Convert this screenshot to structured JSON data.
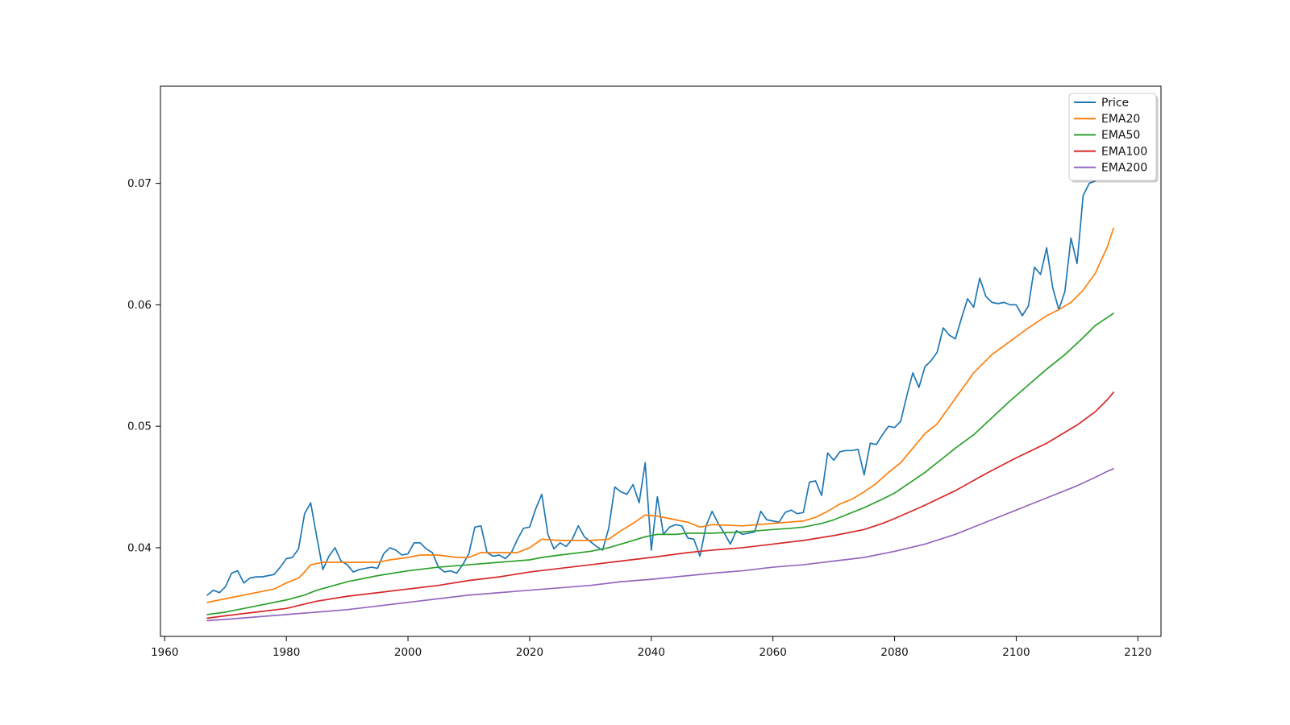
{
  "page": {
    "background": "#ffffff"
  },
  "chart_data": {
    "type": "line",
    "title": "",
    "xlabel": "",
    "ylabel": "",
    "grid": false,
    "plot_background": "#ffffff",
    "spine_color": "#000000",
    "tick_color": "#000000",
    "xlim": [
      1959.3,
      2123.8
    ],
    "ylim": [
      0.0327,
      0.078
    ],
    "x_ticks": [
      {
        "value": 1960,
        "label": "1960"
      },
      {
        "value": 1980,
        "label": "1980"
      },
      {
        "value": 2000,
        "label": "2000"
      },
      {
        "value": 2020,
        "label": "2020"
      },
      {
        "value": 2040,
        "label": "2040"
      },
      {
        "value": 2060,
        "label": "2060"
      },
      {
        "value": 2080,
        "label": "2080"
      },
      {
        "value": 2100,
        "label": "2100"
      },
      {
        "value": 2120,
        "label": "2120"
      }
    ],
    "y_ticks": [
      {
        "value": 0.04,
        "label": "0.04"
      },
      {
        "value": 0.05,
        "label": "0.05"
      },
      {
        "value": 0.06,
        "label": "0.06"
      },
      {
        "value": 0.07,
        "label": "0.07"
      }
    ],
    "legend": {
      "position": "upper right",
      "border_color": "#cccccc",
      "fill": "#ffffff",
      "entries": [
        "Price",
        "EMA20",
        "EMA50",
        "EMA100",
        "EMA200"
      ]
    },
    "series": [
      {
        "name": "Price",
        "color": "#1f77b4",
        "line_width": 1.7,
        "start_year": 1967,
        "step": 1,
        "values": [
          0.0361,
          0.0365,
          0.0363,
          0.0368,
          0.0379,
          0.0381,
          0.0371,
          0.0375,
          0.0376,
          0.0376,
          0.0377,
          0.0378,
          0.0384,
          0.0391,
          0.0392,
          0.0399,
          0.0428,
          0.0437,
          0.0409,
          0.0382,
          0.0393,
          0.04,
          0.0389,
          0.0386,
          0.038,
          0.0382,
          0.0383,
          0.0384,
          0.0383,
          0.0395,
          0.04,
          0.0398,
          0.0394,
          0.0395,
          0.0404,
          0.0404,
          0.0399,
          0.0396,
          0.0384,
          0.038,
          0.0381,
          0.0379,
          0.0386,
          0.0395,
          0.0417,
          0.0418,
          0.0396,
          0.0393,
          0.0394,
          0.0391,
          0.0396,
          0.0407,
          0.0416,
          0.0417,
          0.0432,
          0.0444,
          0.0411,
          0.0399,
          0.0404,
          0.0401,
          0.0407,
          0.0418,
          0.0409,
          0.0405,
          0.0401,
          0.0398,
          0.0416,
          0.045,
          0.0446,
          0.0444,
          0.0452,
          0.0437,
          0.047,
          0.0398,
          0.0442,
          0.0411,
          0.0417,
          0.0419,
          0.0418,
          0.0408,
          0.0407,
          0.0393,
          0.0418,
          0.043,
          0.042,
          0.0412,
          0.0403,
          0.0414,
          0.0411,
          0.0412,
          0.0413,
          0.043,
          0.0423,
          0.0422,
          0.0421,
          0.0429,
          0.0431,
          0.0428,
          0.0429,
          0.0454,
          0.0455,
          0.0443,
          0.0478,
          0.0472,
          0.0479,
          0.048,
          0.048,
          0.0481,
          0.046,
          0.0486,
          0.0485,
          0.0493,
          0.05,
          0.0499,
          0.0504,
          0.0525,
          0.0544,
          0.0532,
          0.0549,
          0.0554,
          0.0561,
          0.0581,
          0.0575,
          0.0572,
          0.0589,
          0.0605,
          0.0598,
          0.0622,
          0.0607,
          0.0602,
          0.0601,
          0.0602,
          0.06,
          0.06,
          0.0591,
          0.0599,
          0.0631,
          0.0625,
          0.0647,
          0.0614,
          0.0596,
          0.0611,
          0.0655,
          0.0634,
          0.069,
          0.07,
          0.0702,
          0.0722,
          0.0742,
          0.0758
        ]
      },
      {
        "name": "EMA20",
        "color": "#ff7f0e",
        "line_width": 1.7,
        "points": [
          [
            1967,
            0.0355
          ],
          [
            1970,
            0.0358
          ],
          [
            1975,
            0.0363
          ],
          [
            1978,
            0.0366
          ],
          [
            1980,
            0.0371
          ],
          [
            1982,
            0.0375
          ],
          [
            1983,
            0.038
          ],
          [
            1984,
            0.0386
          ],
          [
            1986,
            0.0388
          ],
          [
            1990,
            0.0388
          ],
          [
            1995,
            0.0388
          ],
          [
            1997,
            0.039
          ],
          [
            2000,
            0.0392
          ],
          [
            2002,
            0.0394
          ],
          [
            2005,
            0.0394
          ],
          [
            2008,
            0.0392
          ],
          [
            2010,
            0.0392
          ],
          [
            2012,
            0.0396
          ],
          [
            2015,
            0.0396
          ],
          [
            2018,
            0.0396
          ],
          [
            2020,
            0.04
          ],
          [
            2022,
            0.0407
          ],
          [
            2025,
            0.0406
          ],
          [
            2030,
            0.0406
          ],
          [
            2033,
            0.0407
          ],
          [
            2035,
            0.0414
          ],
          [
            2037,
            0.042
          ],
          [
            2039,
            0.0427
          ],
          [
            2041,
            0.0426
          ],
          [
            2043,
            0.0424
          ],
          [
            2046,
            0.0421
          ],
          [
            2048,
            0.0417
          ],
          [
            2050,
            0.0419
          ],
          [
            2055,
            0.0418
          ],
          [
            2060,
            0.042
          ],
          [
            2065,
            0.0422
          ],
          [
            2067,
            0.0425
          ],
          [
            2069,
            0.043
          ],
          [
            2071,
            0.0436
          ],
          [
            2073,
            0.044
          ],
          [
            2075,
            0.0446
          ],
          [
            2077,
            0.0453
          ],
          [
            2079,
            0.0462
          ],
          [
            2081,
            0.047
          ],
          [
            2083,
            0.0482
          ],
          [
            2085,
            0.0494
          ],
          [
            2087,
            0.0502
          ],
          [
            2090,
            0.0523
          ],
          [
            2093,
            0.0544
          ],
          [
            2096,
            0.0559
          ],
          [
            2099,
            0.057
          ],
          [
            2102,
            0.0581
          ],
          [
            2105,
            0.0591
          ],
          [
            2107,
            0.0596
          ],
          [
            2109,
            0.0602
          ],
          [
            2111,
            0.0612
          ],
          [
            2113,
            0.0626
          ],
          [
            2115,
            0.0648
          ],
          [
            2116,
            0.0663
          ]
        ]
      },
      {
        "name": "EMA50",
        "color": "#2ca02c",
        "line_width": 1.7,
        "points": [
          [
            1967,
            0.0345
          ],
          [
            1970,
            0.0347
          ],
          [
            1975,
            0.0352
          ],
          [
            1980,
            0.0357
          ],
          [
            1983,
            0.0361
          ],
          [
            1985,
            0.0365
          ],
          [
            1990,
            0.0372
          ],
          [
            1995,
            0.0377
          ],
          [
            2000,
            0.0381
          ],
          [
            2005,
            0.0384
          ],
          [
            2010,
            0.0386
          ],
          [
            2015,
            0.0388
          ],
          [
            2020,
            0.039
          ],
          [
            2022,
            0.0392
          ],
          [
            2025,
            0.0394
          ],
          [
            2030,
            0.0397
          ],
          [
            2033,
            0.04
          ],
          [
            2035,
            0.0403
          ],
          [
            2037,
            0.0406
          ],
          [
            2039,
            0.0409
          ],
          [
            2041,
            0.0411
          ],
          [
            2044,
            0.0411
          ],
          [
            2046,
            0.0412
          ],
          [
            2050,
            0.0412
          ],
          [
            2055,
            0.0413
          ],
          [
            2060,
            0.0415
          ],
          [
            2063,
            0.0416
          ],
          [
            2065,
            0.0417
          ],
          [
            2068,
            0.042
          ],
          [
            2070,
            0.0423
          ],
          [
            2072,
            0.0427
          ],
          [
            2075,
            0.0433
          ],
          [
            2078,
            0.044
          ],
          [
            2080,
            0.0445
          ],
          [
            2085,
            0.0462
          ],
          [
            2088,
            0.0474
          ],
          [
            2090,
            0.0482
          ],
          [
            2093,
            0.0493
          ],
          [
            2096,
            0.0507
          ],
          [
            2099,
            0.0521
          ],
          [
            2102,
            0.0534
          ],
          [
            2105,
            0.0547
          ],
          [
            2108,
            0.0559
          ],
          [
            2111,
            0.0573
          ],
          [
            2113,
            0.0583
          ],
          [
            2116,
            0.0593
          ]
        ]
      },
      {
        "name": "EMA100",
        "color": "#d62728",
        "line_width": 1.7,
        "points": [
          [
            1967,
            0.0342
          ],
          [
            1970,
            0.0344
          ],
          [
            1975,
            0.0347
          ],
          [
            1980,
            0.035
          ],
          [
            1985,
            0.0356
          ],
          [
            1990,
            0.036
          ],
          [
            1995,
            0.0363
          ],
          [
            2000,
            0.0366
          ],
          [
            2005,
            0.0369
          ],
          [
            2010,
            0.0373
          ],
          [
            2015,
            0.0376
          ],
          [
            2020,
            0.038
          ],
          [
            2025,
            0.0383
          ],
          [
            2030,
            0.0386
          ],
          [
            2035,
            0.0389
          ],
          [
            2040,
            0.0392
          ],
          [
            2043,
            0.0394
          ],
          [
            2046,
            0.0396
          ],
          [
            2050,
            0.0398
          ],
          [
            2055,
            0.04
          ],
          [
            2060,
            0.0403
          ],
          [
            2065,
            0.0406
          ],
          [
            2070,
            0.041
          ],
          [
            2075,
            0.0415
          ],
          [
            2078,
            0.042
          ],
          [
            2080,
            0.0424
          ],
          [
            2085,
            0.0435
          ],
          [
            2090,
            0.0447
          ],
          [
            2095,
            0.0461
          ],
          [
            2100,
            0.0474
          ],
          [
            2105,
            0.0486
          ],
          [
            2110,
            0.0501
          ],
          [
            2113,
            0.0512
          ],
          [
            2115,
            0.0522
          ],
          [
            2116,
            0.0528
          ]
        ]
      },
      {
        "name": "EMA200",
        "color": "#9467bd",
        "line_width": 1.7,
        "points": [
          [
            1967,
            0.034
          ],
          [
            1970,
            0.0341
          ],
          [
            1975,
            0.0343
          ],
          [
            1980,
            0.0345
          ],
          [
            1985,
            0.0347
          ],
          [
            1990,
            0.0349
          ],
          [
            1995,
            0.0352
          ],
          [
            2000,
            0.0355
          ],
          [
            2005,
            0.0358
          ],
          [
            2010,
            0.0361
          ],
          [
            2015,
            0.0363
          ],
          [
            2020,
            0.0365
          ],
          [
            2025,
            0.0367
          ],
          [
            2030,
            0.0369
          ],
          [
            2035,
            0.0372
          ],
          [
            2040,
            0.0374
          ],
          [
            2046,
            0.0377
          ],
          [
            2050,
            0.0379
          ],
          [
            2055,
            0.0381
          ],
          [
            2060,
            0.0384
          ],
          [
            2065,
            0.0386
          ],
          [
            2070,
            0.0389
          ],
          [
            2075,
            0.0392
          ],
          [
            2080,
            0.0397
          ],
          [
            2085,
            0.0403
          ],
          [
            2090,
            0.0411
          ],
          [
            2095,
            0.0421
          ],
          [
            2100,
            0.0431
          ],
          [
            2105,
            0.0441
          ],
          [
            2110,
            0.0451
          ],
          [
            2113,
            0.0458
          ],
          [
            2115,
            0.0463
          ],
          [
            2116,
            0.0465
          ]
        ]
      }
    ]
  }
}
